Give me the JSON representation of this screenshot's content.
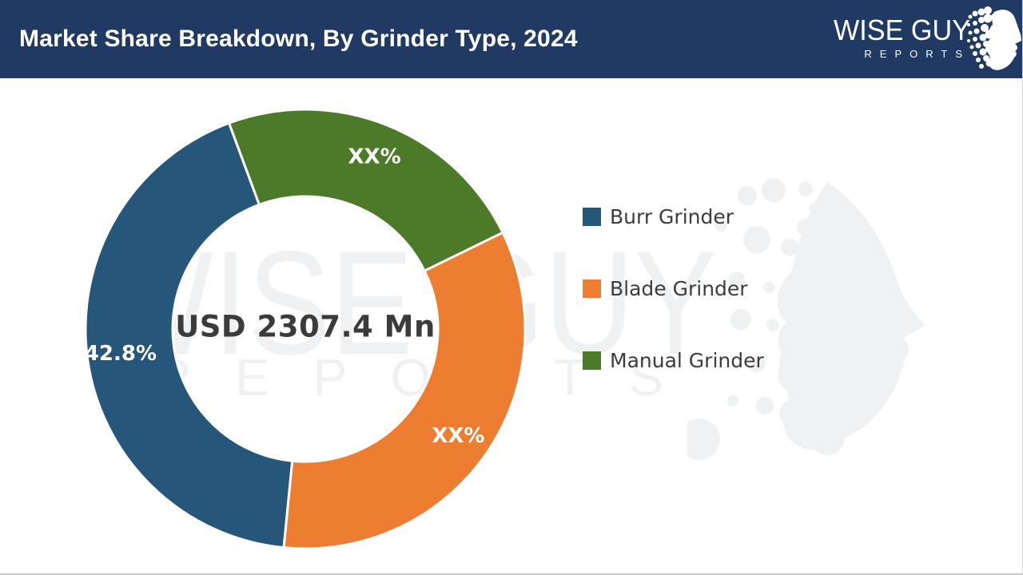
{
  "header": {
    "title": "Market Share Breakdown, By Grinder Type, 2024",
    "logo": {
      "line1": "WISE GUY",
      "line2": "REPORTS"
    }
  },
  "watermark": {
    "line1": "WISE GUY",
    "line2": "REPORTS"
  },
  "chart_data": {
    "type": "pie",
    "subtype": "donut",
    "title": "Market Share Breakdown, By Grinder Type, 2024",
    "center_label": "USD 2307.4 Mn",
    "start_angle_deg": 110.3,
    "direction": "counterclockwise",
    "legend_position": "right",
    "outer_radius_px": 275,
    "inner_radius_px": 166,
    "segments": [
      {
        "label": "Burr Grinder",
        "display_value": "42.8%",
        "share_pct": 42.8,
        "color": "#27567b"
      },
      {
        "label": "Blade Grinder",
        "display_value": "XX%",
        "share_pct": 33.8,
        "color": "#ed7d31"
      },
      {
        "label": "Manual Grinder",
        "display_value": "XX%",
        "share_pct": 23.4,
        "color": "#4c7a28"
      }
    ]
  },
  "colors": {
    "header_bg": "#203a64",
    "header_text": "#ffffff",
    "center_text": "#3b3b3b",
    "legend_text": "#3c3c3c",
    "watermark": "#f0f1f3",
    "slice_gap": "#ffffff"
  }
}
